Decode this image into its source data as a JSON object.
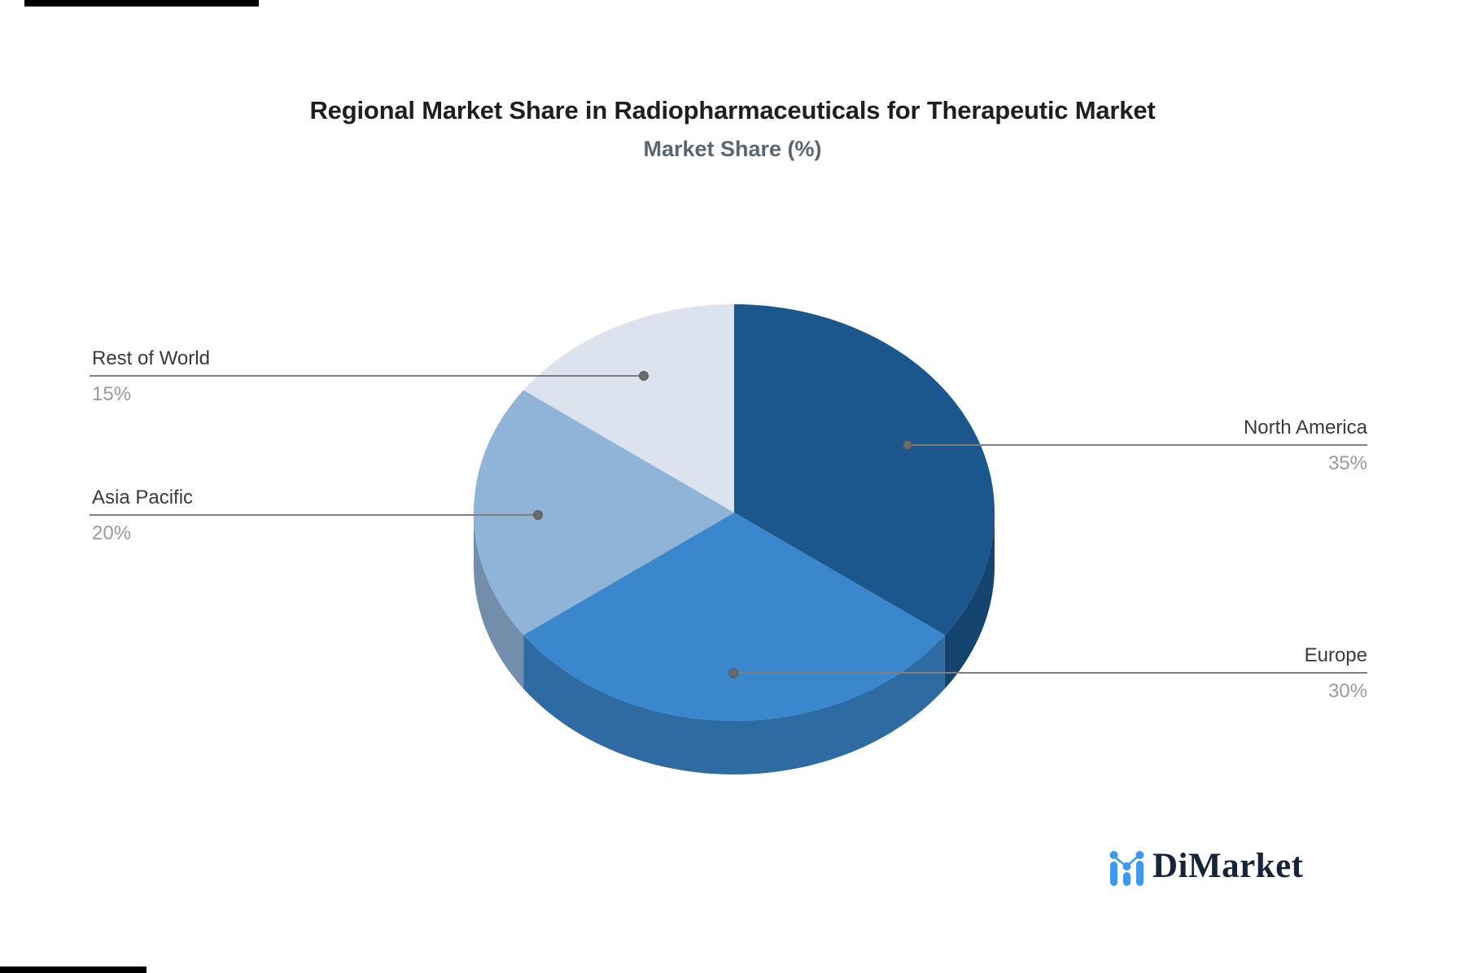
{
  "title": "Regional Market Share in Radiopharmaceuticals for Therapeutic Market",
  "subtitle": "Market Share (%)",
  "chart_data": {
    "type": "pie",
    "title": "Regional Market Share in Radiopharmaceuticals for Therapeutic Market",
    "subtitle": "Market Share (%)",
    "unit": "%",
    "effect_3d": true,
    "start_angle": "top",
    "direction": "clockwise",
    "legend_position": "callout-labels",
    "slices": [
      {
        "label": "North America",
        "value": 35,
        "display": "35%",
        "color": "#1b578d",
        "side_color": "#15456f",
        "callout_side": "right"
      },
      {
        "label": "Europe",
        "value": 30,
        "display": "30%",
        "color": "#3a87cd",
        "side_color": "#2e6ba2",
        "callout_side": "right"
      },
      {
        "label": "Asia Pacific",
        "value": 20,
        "display": "20%",
        "color": "#90b4d8",
        "side_color": "#728eab",
        "callout_side": "left"
      },
      {
        "label": "Rest of World",
        "value": 15,
        "display": "15%",
        "color": "#dce3ee",
        "side_color": "#aeb8c6",
        "callout_side": "left"
      }
    ]
  },
  "brand": {
    "name": "DiMarket",
    "icon": "bar-line-chart-icon",
    "icon_color": "#3b9af0",
    "text_color": "#17233b"
  },
  "colors": {
    "background": "#ffffff",
    "title": "#1f1f1f",
    "subtitle": "#5b6770",
    "leader_line": "#7f7f7f",
    "callout_label": "#3a3a3a",
    "callout_value": "#9a9a9a"
  }
}
